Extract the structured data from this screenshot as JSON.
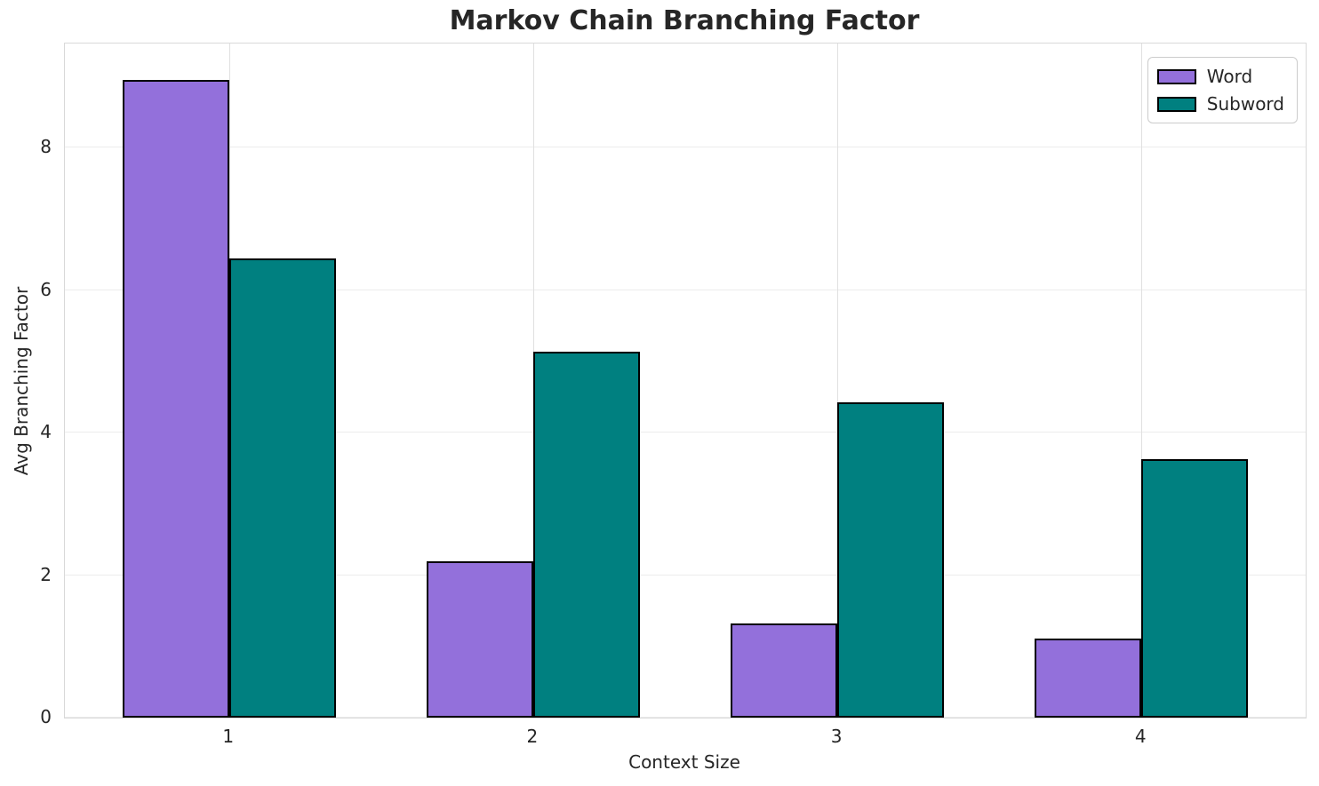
{
  "chart_data": {
    "type": "bar",
    "title": "Markov Chain Branching Factor",
    "xlabel": "Context Size",
    "ylabel": "Avg Branching Factor",
    "categories": [
      "1",
      "2",
      "3",
      "4"
    ],
    "series": [
      {
        "name": "Word",
        "color": "#9370DB",
        "values": [
          8.95,
          2.19,
          1.32,
          1.11
        ]
      },
      {
        "name": "Subword",
        "color": "#008080",
        "values": [
          6.45,
          5.13,
          4.42,
          3.63
        ]
      }
    ],
    "bar_edge_color": "#000000",
    "bar_width": 0.35,
    "xlim": [
      0.46,
      4.54
    ],
    "ylim": [
      0,
      9.46
    ],
    "yticks": [
      0,
      2,
      4,
      6,
      8
    ],
    "grid": true,
    "legend": {
      "position": "top-right"
    }
  }
}
